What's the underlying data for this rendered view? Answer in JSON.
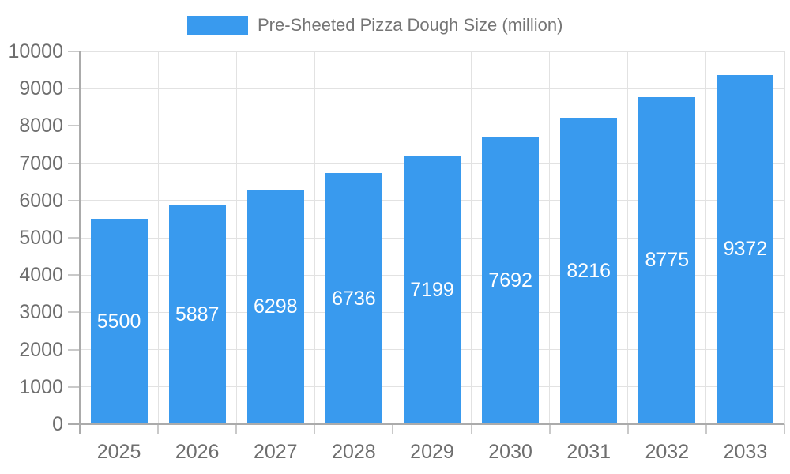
{
  "chart_data": {
    "type": "bar",
    "title": "Pre-Sheeted Pizza Dough Size (million)",
    "legend": {
      "label": "Pre-Sheeted Pizza Dough Size (million)",
      "position": "top"
    },
    "categories": [
      "2025",
      "2026",
      "2027",
      "2028",
      "2029",
      "2030",
      "2031",
      "2032",
      "2033"
    ],
    "series": [
      {
        "name": "Pre-Sheeted Pizza Dough Size (million)",
        "values": [
          5500,
          5887,
          6298,
          6736,
          7199,
          7692,
          8216,
          8775,
          9372
        ]
      }
    ],
    "xlabel": "",
    "ylabel": "",
    "ylim": [
      0,
      10000
    ],
    "ytick_step": 1000,
    "yticks": [
      0,
      1000,
      2000,
      3000,
      4000,
      5000,
      6000,
      7000,
      8000,
      9000,
      10000
    ],
    "grid": {
      "horizontal": true,
      "vertical": true
    },
    "value_labels": {
      "position": "inside-center"
    },
    "colors": {
      "bar": "#399AEE",
      "value_label": "#FFFFFF",
      "legend_text": "#757575",
      "tick_text": "#6E6E6E",
      "gridline": "#E2E2E2",
      "axis_line": "#ABABAB",
      "tick_mark": "#C9C9C9",
      "background": "#FFFFFF"
    }
  }
}
